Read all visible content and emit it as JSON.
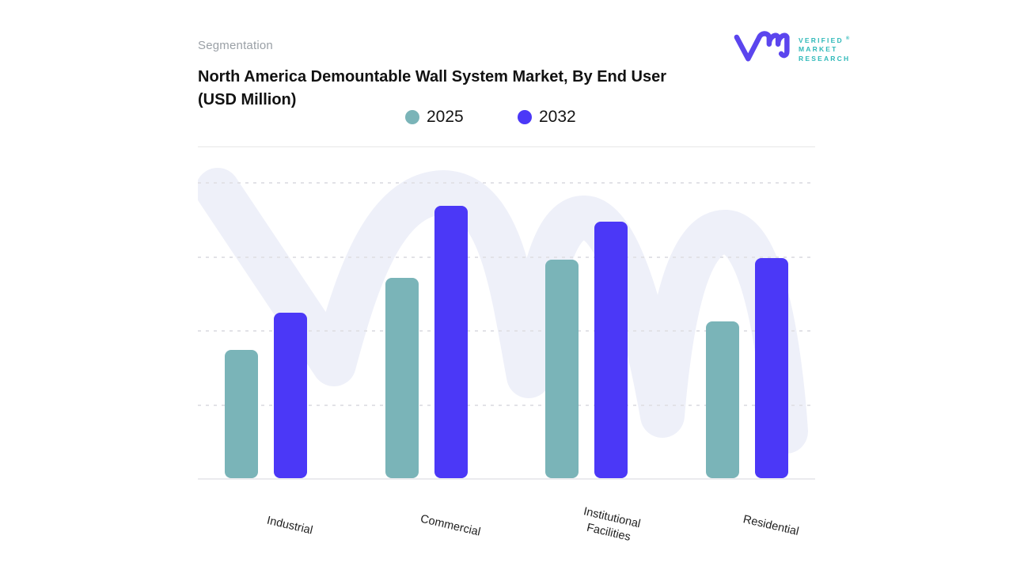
{
  "card": {
    "eyebrow": "Segmentation",
    "title_line1": "North America Demountable Wall System Market, By End User",
    "title_line2": "(USD Million)"
  },
  "logo": {
    "name": "Verified Market Research",
    "lines": [
      "VERIFIED",
      "MARKET",
      "RESEARCH"
    ],
    "registered_mark": "®",
    "glyph_color": "#5b45ee",
    "text_color": "#2fb9b9"
  },
  "chart_data": {
    "type": "bar",
    "title": "North America Demountable Wall System Market, By End User (USD Million)",
    "categories": [
      "Industrial",
      "Commercial",
      "Institutional Facilities",
      "Residential"
    ],
    "category_label_lines": [
      [
        "Industrial"
      ],
      [
        "Commercial"
      ],
      [
        "Institutional",
        "Facilities"
      ],
      [
        "Residential"
      ]
    ],
    "series": [
      {
        "name": "2025",
        "color": "#7ab4b8",
        "values": [
          1.73,
          2.71,
          2.95,
          2.12
        ]
      },
      {
        "name": "2032",
        "color": "#4b38f7",
        "values": [
          2.24,
          3.68,
          3.46,
          2.97
        ]
      }
    ],
    "value_note": "No numeric y-axis labels are shown in the image; values are relative heights estimated in gridline units (1 unit = one dashed-gridline interval above the baseline)",
    "ylim": [
      0,
      4.47
    ],
    "gridlines": [
      1,
      2,
      3,
      4
    ],
    "grid_style": "dashed",
    "legend_position": "top",
    "x_label_rotation_deg": 13,
    "colors": {
      "watermark": "#eef0f9",
      "gridline": "#e2e2e7",
      "baseline": "#ebebee"
    }
  }
}
